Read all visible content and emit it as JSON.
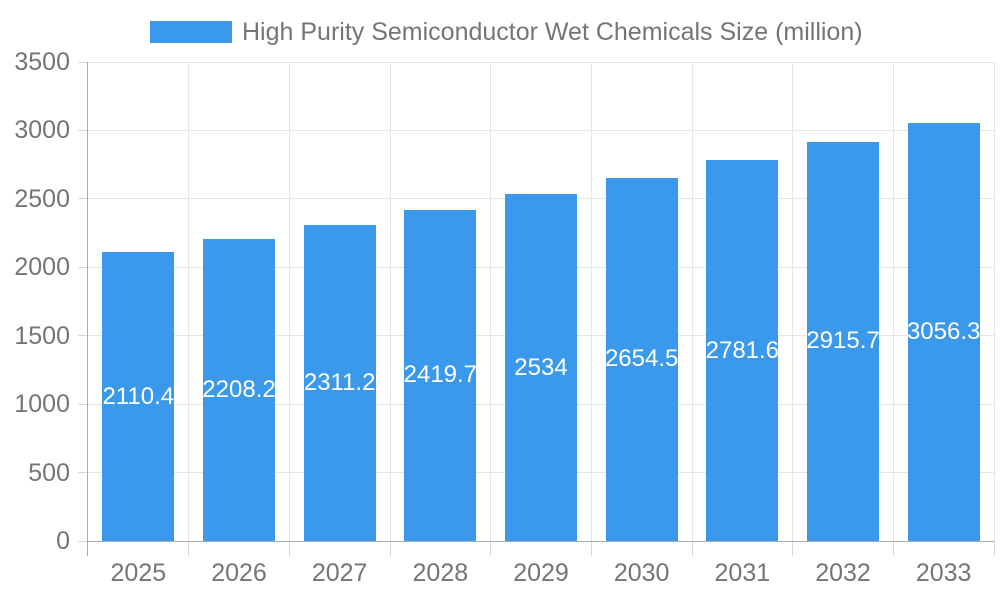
{
  "chart_data": {
    "type": "bar",
    "title": "High Purity Semiconductor Wet Chemicals Size (million)",
    "categories": [
      "2025",
      "2026",
      "2027",
      "2028",
      "2029",
      "2030",
      "2031",
      "2032",
      "2033"
    ],
    "values": [
      2110.4,
      2208.2,
      2311.2,
      2419.7,
      2534,
      2654.5,
      2781.6,
      2915.7,
      3056.3
    ],
    "value_labels": [
      "2110.4",
      "2208.2",
      "2311.2",
      "2419.7",
      "2534",
      "2654.5",
      "2781.6",
      "2915.7",
      "3056.3"
    ],
    "xlabel": "",
    "ylabel": "",
    "ylim": [
      0,
      3500
    ],
    "yticks": [
      0,
      500,
      1000,
      1500,
      2000,
      2500,
      3000,
      3500
    ],
    "grid": true,
    "legend_position": "top",
    "data_label_position": "inside-middle"
  },
  "colors": {
    "bar": "#3B99EC",
    "grid": "#E6E6E6",
    "axis": "#ABABAB",
    "tick_mark": "#D6D6D6",
    "text": "#757575",
    "bar_label": "#FFFFFF",
    "background": "#FFFFFF"
  }
}
